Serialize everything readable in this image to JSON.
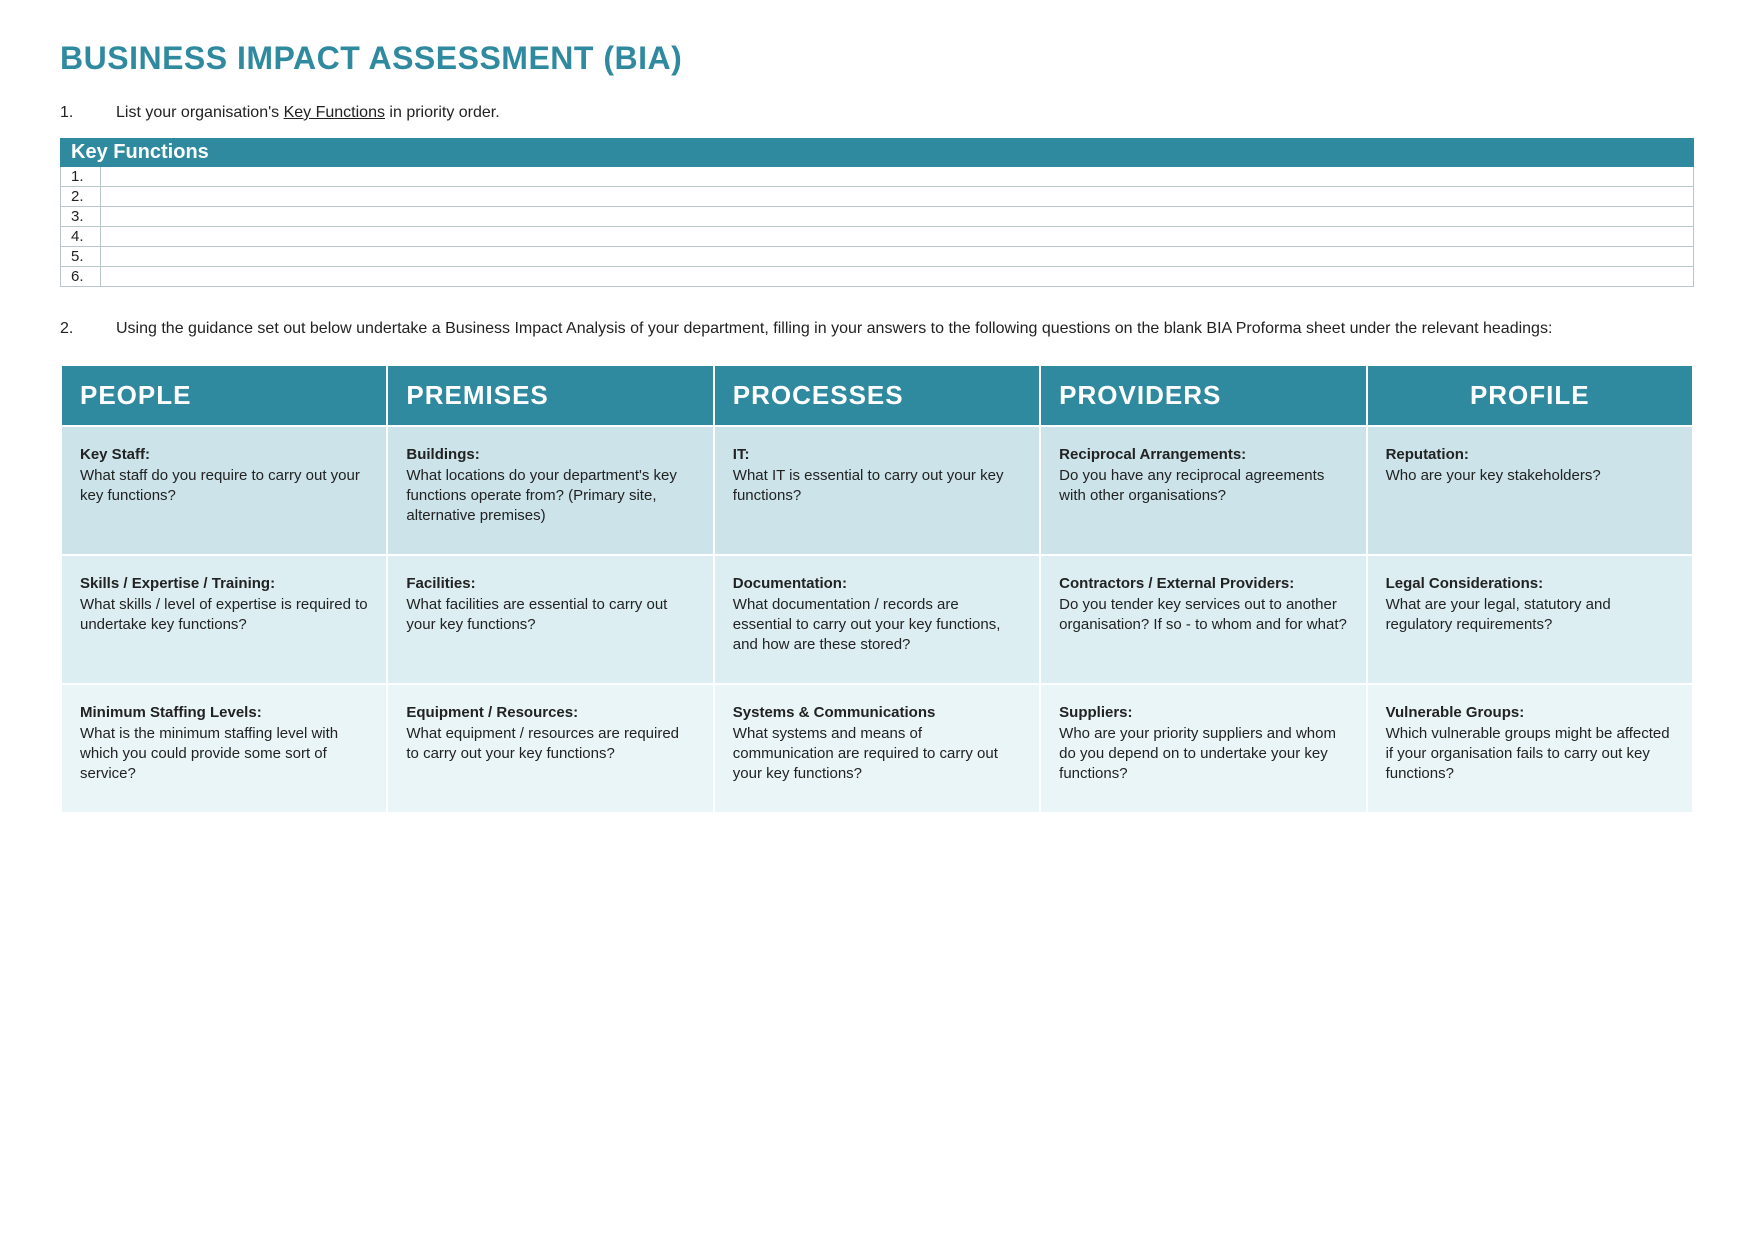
{
  "title": "BUSINESS IMPACT ASSESSMENT (BIA)",
  "colors": {
    "brand": "#2f8aa0",
    "row_a": "#cbe3e9",
    "row_b": "#dceef2",
    "row_c": "#eaf5f8",
    "border": "#b9c6ca"
  },
  "instructions": [
    {
      "num": "1.",
      "text_pre": "List your organisation's ",
      "text_underlined": "Key Functions",
      "text_post": " in priority order."
    },
    {
      "num": "2.",
      "text": "Using the guidance set out below undertake a Business Impact Analysis of your department, filling in your answers to the following questions on the blank BIA Proforma sheet under the relevant headings:"
    }
  ],
  "key_functions": {
    "header": "Key Functions",
    "rows": [
      "1.",
      "2.",
      "3.",
      "4.",
      "5.",
      "6."
    ]
  },
  "guidance": {
    "columns": [
      {
        "label": "PEOPLE",
        "align": "left"
      },
      {
        "label": "PREMISES",
        "align": "left"
      },
      {
        "label": "PROCESSES",
        "align": "left"
      },
      {
        "label": "PROVIDERS",
        "align": "left"
      },
      {
        "label": "PROFILE",
        "align": "center"
      }
    ],
    "rows": [
      [
        {
          "title": "Key Staff:",
          "body": "What staff do you require to carry out your key functions?"
        },
        {
          "title": "Buildings:",
          "body": "What locations do your department's key functions operate from? (Primary site, alternative premises)"
        },
        {
          "title": "IT:",
          "body": "What IT is essential to carry out your key functions?"
        },
        {
          "title": "Reciprocal Arrangements:",
          "body": "Do you have any reciprocal agreements with other organisations?"
        },
        {
          "title": "Reputation:",
          "body": "Who are your key stakeholders?"
        }
      ],
      [
        {
          "title": "Skills / Expertise / Training:",
          "body": "What skills / level of expertise is required to undertake key functions?"
        },
        {
          "title": "Facilities:",
          "body": "What facilities are essential to carry out your key functions?"
        },
        {
          "title": "Documentation:",
          "body": "What documentation / records are essential to carry out your key functions, and how are these stored?"
        },
        {
          "title": "Contractors / External Providers:",
          "body": "Do you tender key services out to another organisation? If so - to whom and for what?"
        },
        {
          "title": "Legal Considerations:",
          "body": "What are your legal, statutory and regulatory requirements?"
        }
      ],
      [
        {
          "title": "Minimum Staffing Levels:",
          "body": "What is the minimum staffing level with which you could provide some sort of service?"
        },
        {
          "title": "Equipment / Resources:",
          "body": "What equipment / resources are required to carry out your key functions?"
        },
        {
          "title": "Systems & Communications",
          "body": "What systems and means of communication are required to carry out your key functions?"
        },
        {
          "title": "Suppliers:",
          "body": "Who are your priority suppliers and whom do you depend on to undertake your key functions?"
        },
        {
          "title": "Vulnerable Groups:",
          "body": "Which vulnerable groups might be affected if your organisation fails to carry out key functions?"
        }
      ]
    ]
  }
}
